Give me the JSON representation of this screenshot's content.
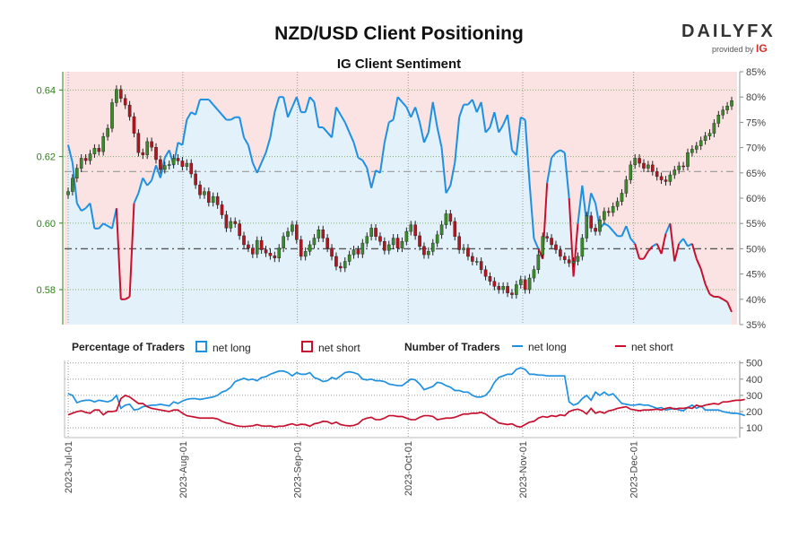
{
  "title": "NZD/USD Client Positioning",
  "subtitle": "IG Client Sentiment",
  "brand": {
    "logo": "DAILYFX",
    "provided_by": "provided by",
    "ig": "IG"
  },
  "legend": {
    "pct_heading": "Percentage of Traders",
    "pct_long": "net long",
    "pct_short": "net short",
    "num_heading": "Number of Traders",
    "num_long": "net long",
    "num_short": "net short"
  },
  "colors": {
    "long": "#1e90e0",
    "short": "#c8102e",
    "up_candle": "#3a8a2a",
    "down_candle": "#b3141d",
    "short_zone": "#fbe3e3",
    "long_zone": "#e3f1fb",
    "price_axis": "#2e7d1a"
  },
  "chart_data": [
    {
      "type": "candlestick+line",
      "title": "NZD/USD Client Positioning",
      "subtitle": "IG Client Sentiment",
      "x_ticks": [
        "2023-Jul-01",
        "2023-Aug-01",
        "2023-Sep-01",
        "2023-Oct-01",
        "2023-Nov-01",
        "2023-Dec-01"
      ],
      "x_range": [
        "2023-06-30",
        "2023-12-29"
      ],
      "price_axis": {
        "side": "left",
        "ticks": [
          "0.58",
          "0.60",
          "0.62",
          "0.64"
        ],
        "range": [
          0.5695,
          0.6455
        ]
      },
      "sentiment_axis": {
        "side": "right",
        "unit": "%",
        "ticks": [
          "35%",
          "40%",
          "45%",
          "50%",
          "55%",
          "60%",
          "65%",
          "70%",
          "75%",
          "80%",
          "85%"
        ],
        "range": [
          35,
          85
        ]
      },
      "reference_lines": {
        "neutral_pct": 50,
        "price_level": 0.6155
      },
      "price_closes": [
        0.6095,
        0.6135,
        0.6165,
        0.6195,
        0.6188,
        0.6208,
        0.6225,
        0.6215,
        0.626,
        0.6285,
        0.6362,
        0.6402,
        0.6375,
        0.6355,
        0.632,
        0.627,
        0.6212,
        0.6205,
        0.6245,
        0.6228,
        0.6191,
        0.6161,
        0.6173,
        0.6176,
        0.6195,
        0.6187,
        0.617,
        0.618,
        0.6148,
        0.6115,
        0.6085,
        0.6095,
        0.6062,
        0.608,
        0.6055,
        0.6025,
        0.5985,
        0.6005,
        0.5998,
        0.5962,
        0.5935,
        0.5925,
        0.5907,
        0.5948,
        0.592,
        0.591,
        0.5902,
        0.5895,
        0.5925,
        0.596,
        0.5975,
        0.5995,
        0.595,
        0.59,
        0.5915,
        0.5935,
        0.5955,
        0.598,
        0.5955,
        0.5925,
        0.59,
        0.587,
        0.5865,
        0.5885,
        0.5905,
        0.592,
        0.5907,
        0.594,
        0.596,
        0.5985,
        0.596,
        0.5945,
        0.5918,
        0.5935,
        0.5955,
        0.5925,
        0.5945,
        0.5975,
        0.5995,
        0.5962,
        0.593,
        0.5905,
        0.5915,
        0.594,
        0.5965,
        0.5995,
        0.6028,
        0.6005,
        0.596,
        0.592,
        0.5925,
        0.59,
        0.5885,
        0.5885,
        0.586,
        0.584,
        0.5825,
        0.581,
        0.58,
        0.581,
        0.579,
        0.5785,
        0.5815,
        0.583,
        0.58,
        0.5835,
        0.586,
        0.5905,
        0.596,
        0.5955,
        0.5935,
        0.592,
        0.59,
        0.589,
        0.588,
        0.5885,
        0.59,
        0.5955,
        0.6022,
        0.5985,
        0.5975,
        0.601,
        0.6035,
        0.6032,
        0.605,
        0.6065,
        0.609,
        0.613,
        0.6175,
        0.6195,
        0.618,
        0.6165,
        0.6175,
        0.6155,
        0.614,
        0.613,
        0.6125,
        0.6145,
        0.616,
        0.6172,
        0.617,
        0.6212,
        0.6222,
        0.6232,
        0.6248,
        0.6262,
        0.627,
        0.63,
        0.6325,
        0.634,
        0.6352,
        0.6368
      ],
      "sentiment_long_pct": [
        70.5,
        67,
        59,
        57.5,
        58,
        59,
        54,
        54,
        55,
        54.5,
        54,
        58,
        40,
        40,
        40.5,
        59,
        61,
        64,
        62.5,
        63.5,
        66.5,
        64,
        68,
        69.5,
        66.5,
        71,
        70.5,
        75.5,
        77,
        76.5,
        79.5,
        79.5,
        79.5,
        78.5,
        77.5,
        76.5,
        75.5,
        75.5,
        76,
        76,
        72,
        70.5,
        67,
        65,
        67,
        69,
        72,
        77,
        80,
        80,
        76,
        78,
        80,
        77,
        77,
        80,
        79,
        74,
        74,
        73,
        72,
        78,
        76.5,
        75,
        73,
        71,
        68,
        67.5,
        66,
        62,
        65.5,
        65,
        71,
        75,
        75.5,
        80,
        79,
        78,
        76,
        78,
        75,
        71,
        73,
        79,
        74,
        70,
        61,
        62.5,
        67,
        76,
        78.5,
        78.5,
        79.5,
        77,
        79,
        73,
        74,
        77,
        73,
        74.5,
        76.5,
        69.5,
        68.5,
        76,
        75.5,
        63,
        52,
        50,
        48,
        63,
        68,
        69,
        69.5,
        69,
        60,
        44.5,
        55,
        62.5,
        55,
        61,
        59,
        54,
        55,
        54.5,
        53.5,
        52.5,
        52.5,
        54.5,
        52,
        51,
        48,
        48,
        49.5,
        50.5,
        51,
        49,
        53,
        55,
        47.5,
        51,
        52,
        50.5,
        51,
        48,
        46,
        43,
        41,
        40.5,
        40.5,
        40,
        39.5,
        37.5
      ],
      "traders_axis": {
        "side": "right",
        "ticks": [
          "100",
          "200",
          "300",
          "400",
          "500"
        ],
        "range": [
          40,
          515
        ]
      },
      "traders_long": [
        310,
        300,
        255,
        265,
        270,
        270,
        260,
        270,
        265,
        260,
        270,
        300,
        220,
        240,
        245,
        210,
        215,
        230,
        235,
        240,
        240,
        245,
        240,
        235,
        260,
        250,
        265,
        275,
        280,
        280,
        275,
        280,
        285,
        290,
        300,
        320,
        330,
        350,
        385,
        395,
        405,
        395,
        400,
        390,
        410,
        415,
        430,
        440,
        450,
        450,
        440,
        420,
        440,
        430,
        430,
        440,
        410,
        400,
        385,
        390,
        410,
        400,
        420,
        440,
        445,
        440,
        430,
        400,
        395,
        400,
        390,
        390,
        385,
        370,
        365,
        360,
        360,
        380,
        400,
        395,
        370,
        335,
        345,
        355,
        380,
        375,
        360,
        350,
        330,
        330,
        320,
        320,
        300,
        290,
        290,
        300,
        330,
        380,
        410,
        420,
        430,
        430,
        460,
        470,
        460,
        430,
        430,
        425,
        425,
        420,
        420,
        420,
        420,
        420,
        260,
        240,
        250,
        280,
        300,
        270,
        320,
        300,
        320,
        300,
        310,
        280,
        250,
        245,
        240,
        240,
        245,
        240,
        240,
        230,
        220,
        225,
        210,
        215,
        220,
        210,
        205,
        225,
        240,
        220,
        235,
        210,
        210,
        210,
        210,
        200,
        195,
        190,
        190,
        185,
        175
      ],
      "traders_short": [
        180,
        190,
        200,
        205,
        195,
        190,
        210,
        210,
        180,
        200,
        200,
        205,
        280,
        300,
        290,
        270,
        250,
        250,
        230,
        220,
        215,
        210,
        205,
        200,
        210,
        210,
        190,
        175,
        170,
        165,
        160,
        160,
        160,
        160,
        155,
        140,
        130,
        125,
        115,
        110,
        108,
        110,
        112,
        120,
        112,
        110,
        112,
        105,
        110,
        110,
        118,
        125,
        115,
        122,
        120,
        110,
        125,
        130,
        140,
        138,
        125,
        135,
        120,
        115,
        112,
        115,
        125,
        150,
        160,
        165,
        150,
        150,
        160,
        175,
        175,
        170,
        170,
        160,
        150,
        150,
        165,
        175,
        175,
        170,
        150,
        155,
        160,
        160,
        165,
        175,
        185,
        185,
        190,
        190,
        195,
        185,
        165,
        150,
        130,
        125,
        120,
        125,
        110,
        105,
        120,
        135,
        140,
        160,
        170,
        165,
        175,
        170,
        180,
        175,
        200,
        210,
        215,
        205,
        185,
        220,
        190,
        200,
        190,
        205,
        210,
        220,
        225,
        230,
        215,
        210,
        205,
        210,
        210,
        212,
        215,
        210,
        220,
        225,
        215,
        220,
        220,
        225,
        220,
        240,
        230,
        240,
        245,
        250,
        245,
        260,
        260,
        265,
        270,
        270,
        275
      ]
    }
  ]
}
